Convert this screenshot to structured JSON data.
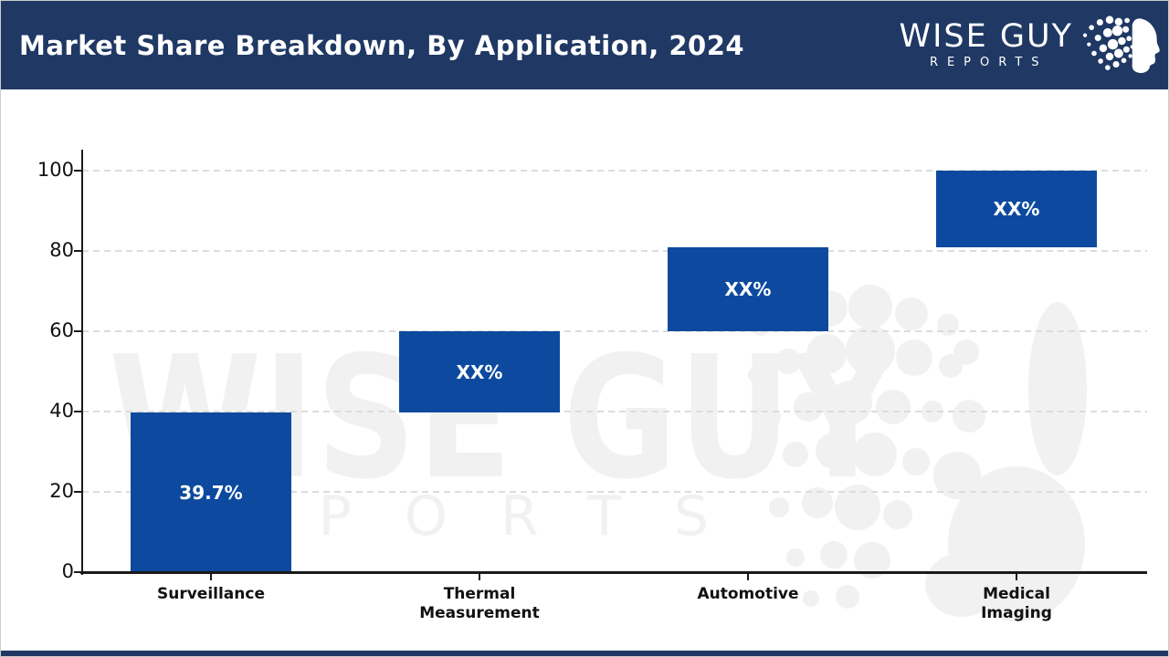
{
  "header": {
    "title": "Market Share Breakdown, By Application, 2024",
    "bg_color": "#1f3864",
    "logo": {
      "line1": "WISE GUY",
      "line2": "REPORTS"
    }
  },
  "watermark": {
    "line1": "WISE GUY",
    "line2": "REPORTS"
  },
  "chart_data": {
    "type": "bar",
    "subtype": "waterfall",
    "title": "Market Share Breakdown, By Application, 2024",
    "categories": [
      "Surveillance",
      "Thermal Measurement",
      "Automotive",
      "Medical Imaging"
    ],
    "series": [
      {
        "category": "Surveillance",
        "start": 0,
        "end": 39.7,
        "label": "39.7%"
      },
      {
        "category": "Thermal Measurement",
        "start": 39.7,
        "end": 60,
        "label": "XX%"
      },
      {
        "category": "Automotive",
        "start": 60,
        "end": 81,
        "label": "XX%"
      },
      {
        "category": "Medical Imaging",
        "start": 81,
        "end": 100,
        "label": "XX%"
      }
    ],
    "xlabel": "",
    "ylabel": "",
    "yticks": [
      0,
      20,
      40,
      60,
      80,
      100
    ],
    "ylim": [
      0,
      105
    ],
    "grid": "horizontal-dashed",
    "legend": "none",
    "colors": {
      "bar": "#0d4a9f",
      "bar_label": "#ffffff",
      "grid": "#dcdcdc",
      "axis": "#1a1a1a",
      "tick_label": "#111111",
      "watermark": "#f1f1f1"
    }
  },
  "footer": {
    "bg_color": "#1f3864"
  }
}
